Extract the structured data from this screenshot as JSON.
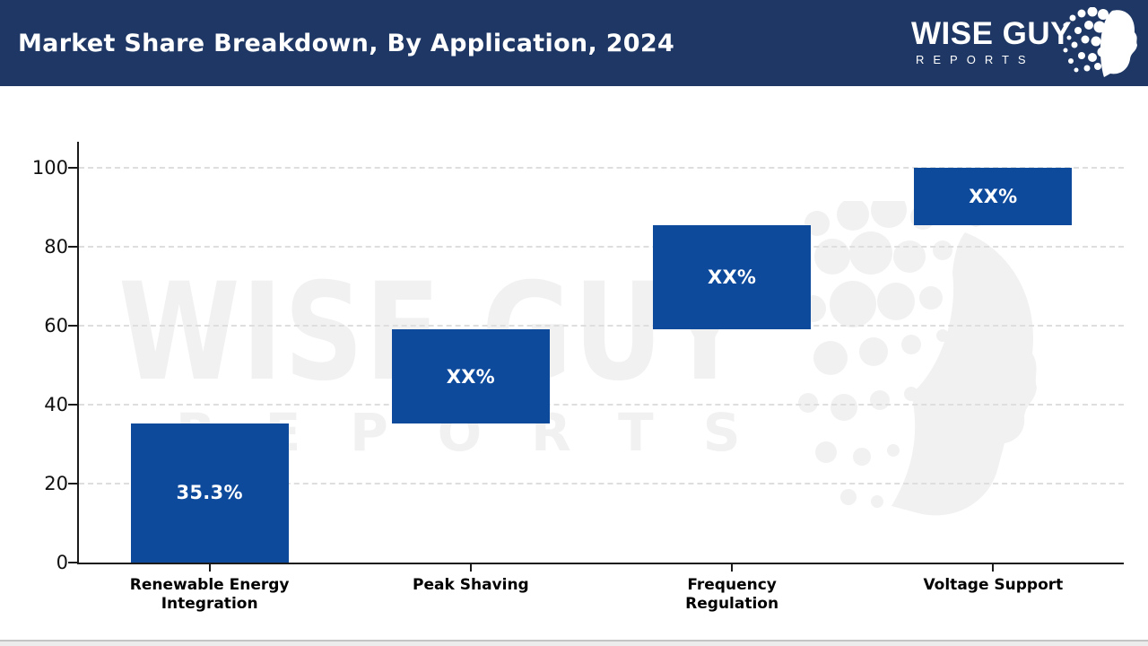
{
  "header": {
    "title": "Market Share Breakdown, By Application, 2024",
    "bg_color": "#1e3764",
    "logo": {
      "line1": "WISE GUY",
      "line2": "REPORTS"
    }
  },
  "watermark": {
    "line1": "WISE GUY",
    "line2": "REPORTS",
    "color": "#f1f1f1"
  },
  "chart_data": {
    "type": "bar",
    "variant": "waterfall-stacked",
    "title": "Market Share Breakdown, By Application, 2024",
    "categories": [
      "Renewable Energy Integration",
      "Peak Shaving",
      "Frequency Regulation",
      "Voltage Support"
    ],
    "category_lines": [
      [
        "Renewable Energy",
        "Integration"
      ],
      [
        "Peak Shaving"
      ],
      [
        "Frequency",
        "Regulation"
      ],
      [
        "Voltage Support"
      ]
    ],
    "segments": [
      {
        "start": 0,
        "end": 35.3,
        "label": "35.3%"
      },
      {
        "start": 35.3,
        "end": 59,
        "label": "XX%"
      },
      {
        "start": 59,
        "end": 85.5,
        "label": "XX%"
      },
      {
        "start": 85.5,
        "end": 100,
        "label": "XX%"
      }
    ],
    "ylim": [
      0,
      100
    ],
    "yticks": [
      0,
      20,
      40,
      60,
      80,
      100
    ],
    "grid": "horizontal-dashed",
    "legend": "none",
    "bar_color": "#0d4a9c",
    "value_label_color": "#ffffff",
    "axis_color": "#1a1a1a",
    "grid_color": "#dedede"
  }
}
